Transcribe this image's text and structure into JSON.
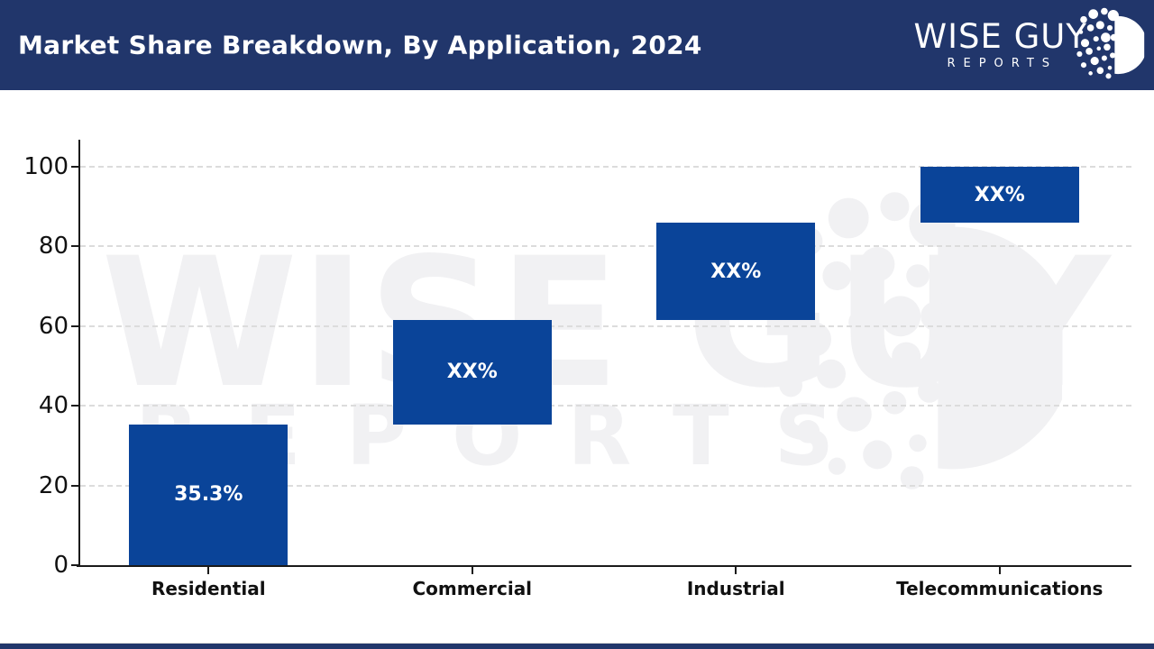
{
  "header": {
    "title": "Market Share Breakdown, By Application, 2024",
    "bg_color": "#21366b",
    "logo": {
      "line1": "WISE GUY",
      "line2": "REPORTS"
    }
  },
  "watermark": {
    "line1": "WISE GUY",
    "line2": "REPORTS"
  },
  "chart_data": {
    "type": "bar",
    "variant": "floating-waterfall",
    "title": "Market Share Breakdown, By Application, 2024",
    "categories": [
      "Residential",
      "Commercial",
      "Industrial",
      "Telecommunications"
    ],
    "segments": [
      {
        "category": "Residential",
        "start": 0,
        "end": 35.3,
        "label": "35.3%"
      },
      {
        "category": "Commercial",
        "start": 35.3,
        "end": 61.6,
        "label": "XX%"
      },
      {
        "category": "Industrial",
        "start": 61.6,
        "end": 85.9,
        "label": "XX%"
      },
      {
        "category": "Telecommunications",
        "start": 85.9,
        "end": 100,
        "label": "XX%"
      }
    ],
    "xlabel": "",
    "ylabel": "",
    "ylim": [
      0,
      100
    ],
    "yticks": [
      0,
      20,
      40,
      60,
      80,
      100
    ],
    "grid": "dashed-horizontal",
    "legend": "none",
    "bar_color": "#0a4499",
    "bar_label_color": "#ffffff",
    "axis_color": "#1a1a1a",
    "grid_color": "#dcdcdc"
  }
}
